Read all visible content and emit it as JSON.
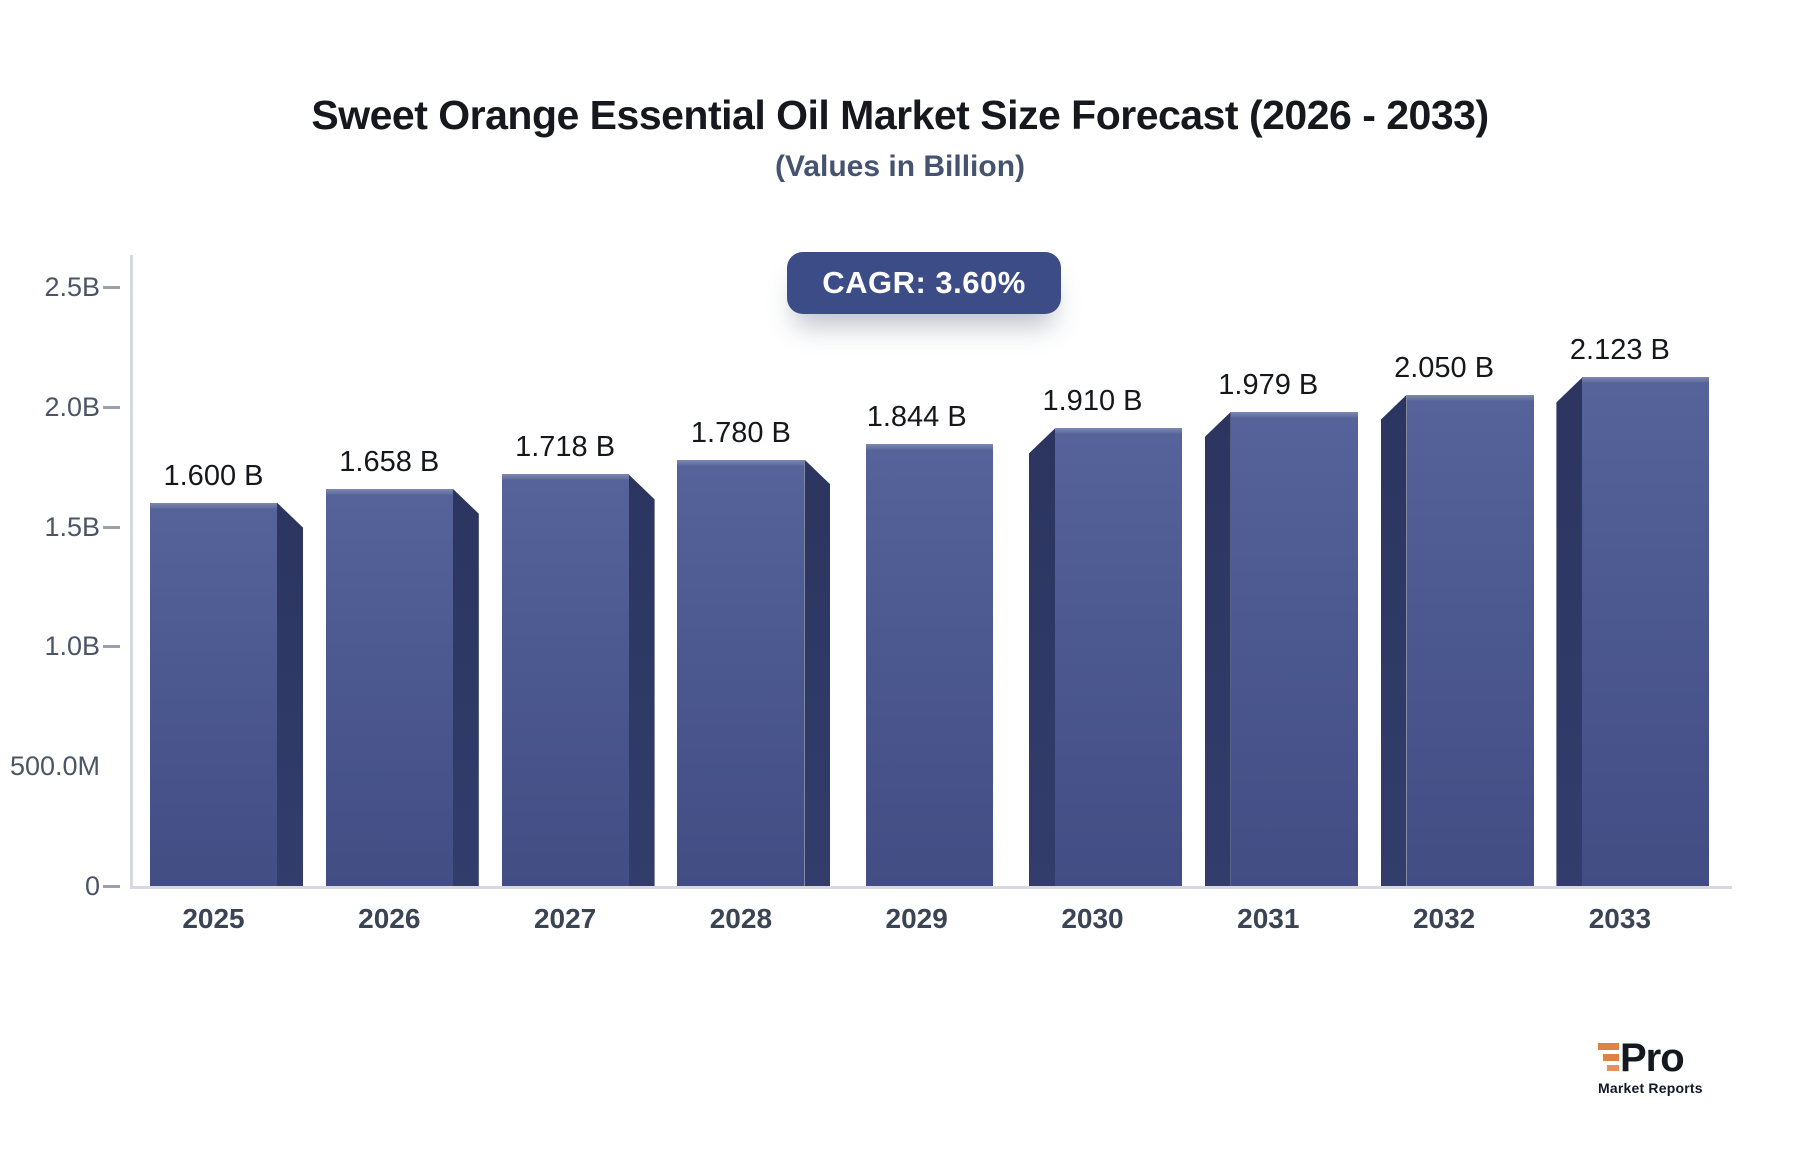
{
  "header": {
    "title": "Sweet Orange Essential Oil Market Size Forecast (2026 - 2033)",
    "subtitle": "(Values in Billion)",
    "cagr_label": "CAGR: 3.60%"
  },
  "colors": {
    "badge_bg": "#3c4c87",
    "bar_face_top": "#56639b",
    "bar_face_bottom": "#414d83",
    "bar_side": "#2c3663",
    "axis_line": "#d6d9df",
    "logo_accent": "#dd8345"
  },
  "chart_data": {
    "type": "bar",
    "title": "Sweet Orange Essential Oil Market Size Forecast (2026 - 2033)",
    "subtitle": "(Values in Billion)",
    "annotation": "CAGR: 3.60%",
    "categories": [
      "2025",
      "2026",
      "2027",
      "2028",
      "2029",
      "2030",
      "2031",
      "2032",
      "2033"
    ],
    "values": [
      1.6,
      1.658,
      1.718,
      1.78,
      1.844,
      1.91,
      1.979,
      2.05,
      2.123
    ],
    "value_labels": [
      "1.600 B",
      "1.658 B",
      "1.718 B",
      "1.780 B",
      "1.844 B",
      "1.910 B",
      "1.979 B",
      "2.050 B",
      "2.123 B"
    ],
    "xlabel": "",
    "ylabel": "",
    "ylim": [
      0,
      2.5
    ],
    "yticks": [
      {
        "v": 0.0,
        "label": "0",
        "dash": true
      },
      {
        "v": 0.5,
        "label": "500.0M",
        "dash": false
      },
      {
        "v": 1.0,
        "label": "1.0B",
        "dash": true
      },
      {
        "v": 1.5,
        "label": "1.5B",
        "dash": true
      },
      {
        "v": 2.0,
        "label": "2.0B",
        "dash": true
      },
      {
        "v": 2.5,
        "label": "2.5B",
        "dash": true
      }
    ],
    "grid": false,
    "legend": false,
    "bar_style": "3d-beveled, vanishing point at center bar"
  },
  "logo": {
    "name": "Pro",
    "tagline": "Market Reports"
  }
}
